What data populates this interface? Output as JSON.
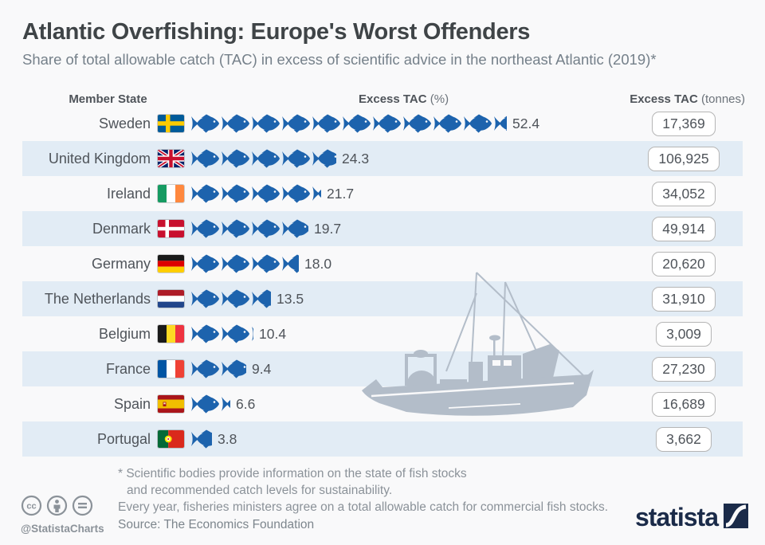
{
  "page": {
    "title": "Atlantic Overfishing: Europe's Worst Offenders",
    "subtitle": "Share of total allowable catch (TAC) in excess of scientific advice in the northeast Atlantic (2019)*"
  },
  "chart_data": {
    "type": "bar",
    "style": "pictorial-fish-icons",
    "icon": "fish",
    "icon_unit_pct": 5,
    "columns": {
      "state": "Member State",
      "pct_label": "Excess TAC",
      "pct_unit": "(%)",
      "tonnes_label": "Excess TAC",
      "tonnes_unit": "(tonnes)"
    },
    "rows": [
      {
        "country": "Sweden",
        "flag": "sweden",
        "pct": 52.4,
        "tonnes": "17,369"
      },
      {
        "country": "United Kingdom",
        "flag": "uk",
        "pct": 24.3,
        "tonnes": "106,925"
      },
      {
        "country": "Ireland",
        "flag": "ireland",
        "pct": 21.7,
        "tonnes": "34,052"
      },
      {
        "country": "Denmark",
        "flag": "denmark",
        "pct": 19.7,
        "tonnes": "49,914"
      },
      {
        "country": "Germany",
        "flag": "germany",
        "pct": 18.0,
        "tonnes": "20,620"
      },
      {
        "country": "The Netherlands",
        "flag": "netherlands",
        "pct": 13.5,
        "tonnes": "31,910"
      },
      {
        "country": "Belgium",
        "flag": "belgium",
        "pct": 10.4,
        "tonnes": "3,009"
      },
      {
        "country": "France",
        "flag": "france",
        "pct": 9.4,
        "tonnes": "27,230"
      },
      {
        "country": "Spain",
        "flag": "spain",
        "pct": 6.6,
        "tonnes": "16,689"
      },
      {
        "country": "Portugal",
        "flag": "portugal",
        "pct": 3.8,
        "tonnes": "3,662"
      }
    ],
    "colors": {
      "fish": "#1d63ad",
      "row_band": "#e2ecf5",
      "boat": "#b3bdc9"
    }
  },
  "footer": {
    "note_line1": "* Scientific bodies provide information on the state of fish stocks",
    "note_line2": "and recommended catch levels for sustainability.",
    "note_line3": "Every year, fisheries ministers agree on a total allowable catch for commercial fish stocks.",
    "source": "Source: The Economics Foundation",
    "handle": "@StatistaCharts",
    "brand": "statista"
  }
}
